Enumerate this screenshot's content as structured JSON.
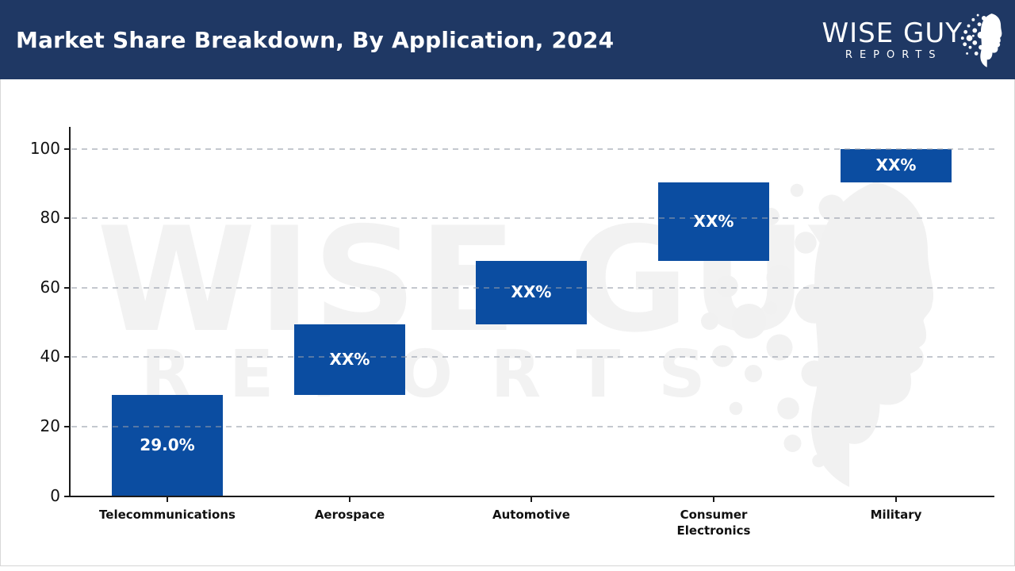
{
  "header": {
    "title": "Market Share Breakdown, By Application, 2024",
    "logo": {
      "line1": "WISE GUY",
      "line2": "REPORTS"
    }
  },
  "watermark": {
    "line1": "WISE GUY",
    "line2": "REPORTS"
  },
  "chart_data": {
    "type": "bar",
    "subtype": "floating-waterfall",
    "title": "Market Share Breakdown, By Application, 2024",
    "xlabel": "",
    "ylabel": "",
    "categories": [
      "Telecommunications",
      "Aerospace",
      "Automotive",
      "Consumer\nElectronics",
      "Military"
    ],
    "segments": [
      {
        "category": "Telecommunications",
        "start": 0,
        "end": 29,
        "label": "29.0%"
      },
      {
        "category": "Aerospace",
        "start": 29,
        "end": 49.5,
        "label": "XX%"
      },
      {
        "category": "Automotive",
        "start": 49.5,
        "end": 67.7,
        "label": "XX%"
      },
      {
        "category": "Consumer Electronics",
        "start": 67.7,
        "end": 90.2,
        "label": "XX%"
      },
      {
        "category": "Military",
        "start": 90.2,
        "end": 100,
        "label": "XX%"
      }
    ],
    "yticks": [
      0,
      20,
      40,
      60,
      80,
      100
    ],
    "gridlines": [
      20,
      40,
      60,
      80,
      100
    ],
    "grid_style": "dashed",
    "ylim": [
      0,
      106
    ],
    "legend": "none",
    "colors": {
      "bar": "#0B4DA1",
      "header_bg": "#1F3864",
      "grid": "#dcdcdc",
      "watermark": "#f2f2f2",
      "axis_text": "#111111",
      "bar_label_text": "#ffffff"
    }
  }
}
